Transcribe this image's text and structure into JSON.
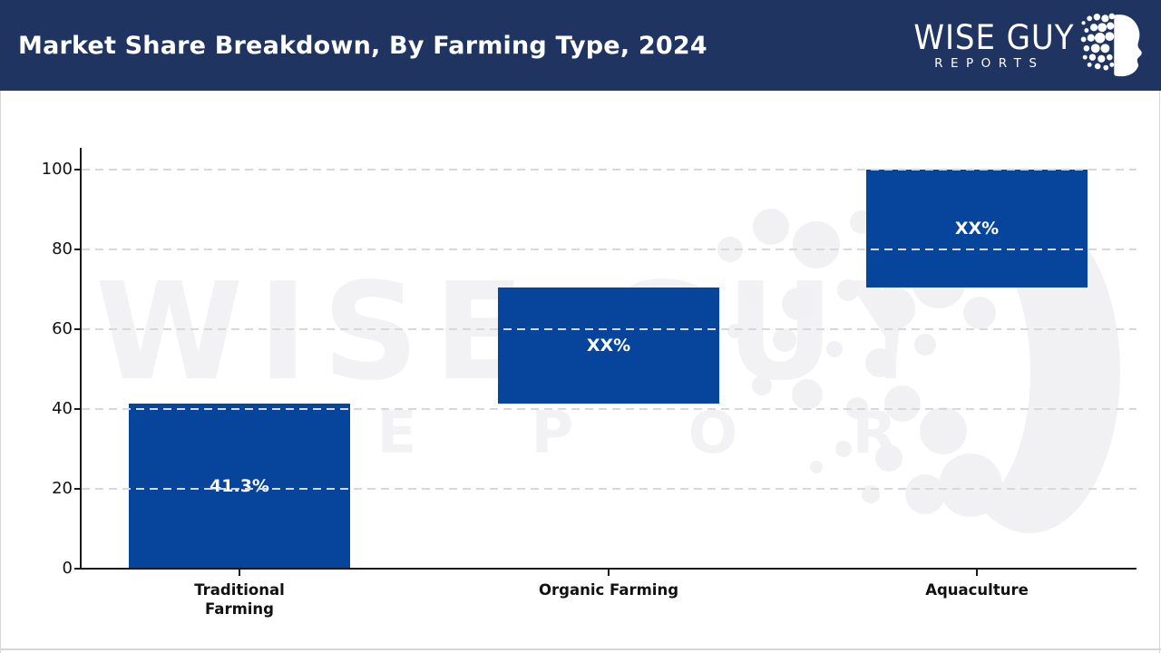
{
  "header": {
    "title": "Market Share Breakdown, By Farming Type, 2024",
    "logo": {
      "line1": "WISE GUY",
      "line2": "REPORTS"
    }
  },
  "watermark": {
    "line1": "WISE GUY",
    "line2": "R E P O R T S"
  },
  "chart_data": {
    "type": "bar",
    "subtype": "waterfall-stacked-segments",
    "title": "Market Share Breakdown, By Farming Type, 2024",
    "categories": [
      "Traditional Farming",
      "Organic Farming",
      "Aquaculture"
    ],
    "segments": [
      {
        "category": "Traditional Farming",
        "tick_lines": [
          "Traditional",
          "Farming"
        ],
        "start": 0,
        "end": 41.3,
        "label": "41.3%"
      },
      {
        "category": "Organic Farming",
        "tick_lines": [
          "Organic Farming"
        ],
        "start": 41.3,
        "end": 70.5,
        "label": "XX%"
      },
      {
        "category": "Aquaculture",
        "tick_lines": [
          "Aquaculture"
        ],
        "start": 70.5,
        "end": 100,
        "label": "XX%"
      }
    ],
    "xlabel": "",
    "ylabel": "",
    "ylim": [
      0,
      100
    ],
    "yticks": [
      0,
      20,
      40,
      60,
      80,
      100
    ],
    "grid": "horizontal-dashed",
    "legend": "none",
    "bar_color": "#06459b",
    "bar_label_color": "#ffffff"
  },
  "colors": {
    "header_bg": "#1f3460",
    "bar": "#06459b",
    "gridline": "#d8d8d8",
    "axis": "#1a1a1a",
    "watermark": "#f2f2f5"
  }
}
